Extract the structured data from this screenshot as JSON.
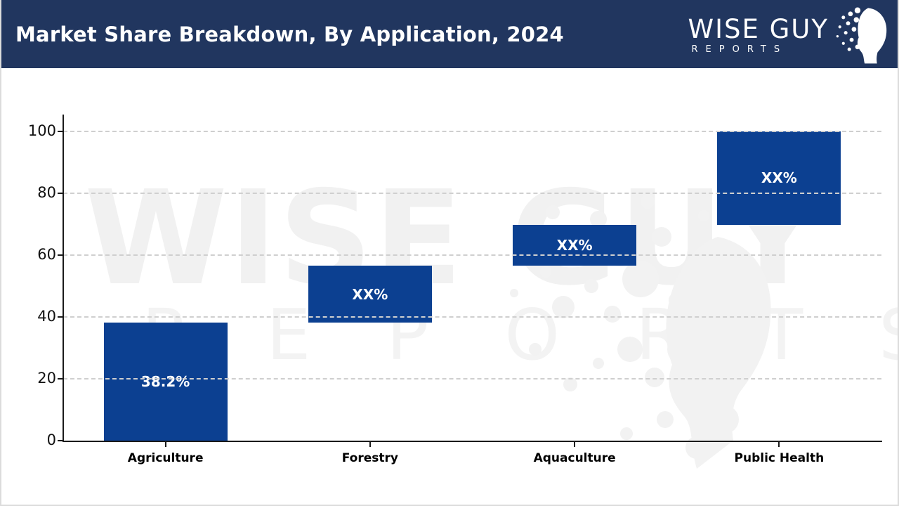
{
  "header": {
    "title": "Market Share Breakdown, By Application, 2024",
    "bg_color": "#21365f"
  },
  "logo": {
    "line1": "WISE GUY",
    "line2": "REPORTS",
    "icon": "dotted-face-profile-icon"
  },
  "watermark": {
    "line1": "WISE GUY",
    "line2": "R E P O R T S"
  },
  "chart_data": {
    "type": "bar",
    "subtype": "waterfall",
    "title": "Market Share Breakdown, By Application, 2024",
    "categories": [
      "Agriculture",
      "Forestry",
      "Aquaculture",
      "Public Health"
    ],
    "segments": [
      {
        "category": "Agriculture",
        "start": 0,
        "end": 38.2,
        "label": "38.2%"
      },
      {
        "category": "Forestry",
        "start": 38.2,
        "end": 56.5,
        "label": "XX%"
      },
      {
        "category": "Aquaculture",
        "start": 56.5,
        "end": 69.8,
        "label": "XX%"
      },
      {
        "category": "Public Health",
        "start": 69.8,
        "end": 100,
        "label": "XX%"
      }
    ],
    "y_ticks": [
      0,
      20,
      40,
      60,
      80,
      100
    ],
    "ylim": [
      0,
      105
    ],
    "xlabel": "",
    "ylabel": "",
    "grid": "dashed-horizontal",
    "legend": "none",
    "bar_color": "#0c4091",
    "label_color": "#ffffff"
  }
}
